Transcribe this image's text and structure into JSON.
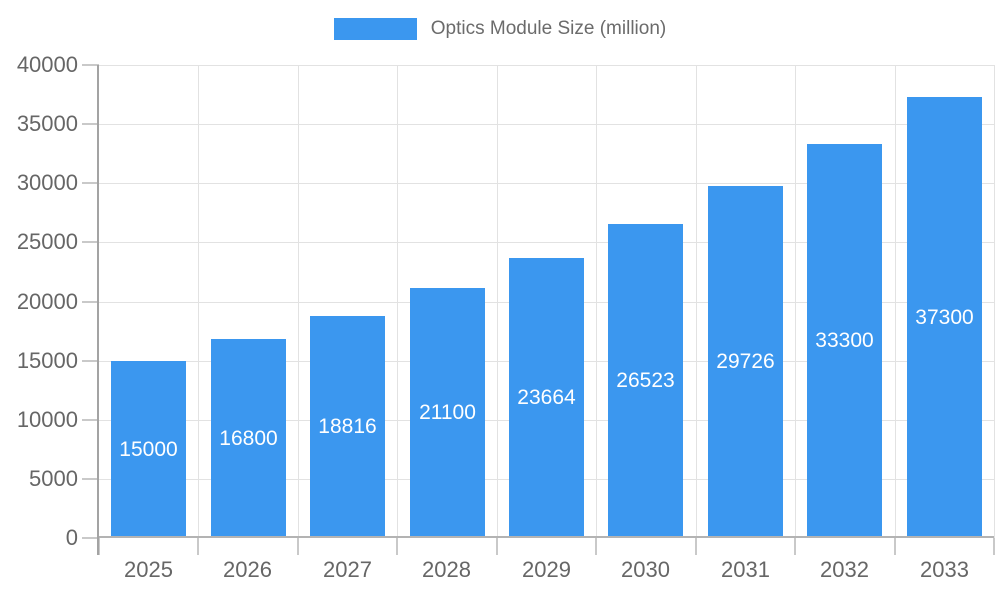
{
  "chart_data": {
    "type": "bar",
    "title": "",
    "legend_position": "top-center",
    "value_labels": "inside-center",
    "grid": true,
    "categories": [
      "2025",
      "2026",
      "2027",
      "2028",
      "2029",
      "2030",
      "2031",
      "2032",
      "2033"
    ],
    "series": [
      {
        "name": "Optics Module Size (million)",
        "values": [
          15000,
          16800,
          18816,
          21100,
          23664,
          26523,
          29726,
          33300,
          37300
        ]
      }
    ],
    "xlabel": "",
    "ylabel": "",
    "ylim": [
      0,
      40000
    ],
    "yticks": [
      0,
      5000,
      10000,
      15000,
      20000,
      25000,
      30000,
      35000,
      40000
    ],
    "colors": {
      "bar": "#3B97EF",
      "value_label": "#FFFFFF",
      "axis_text": "#666666",
      "legend_text": "#6B6B6B",
      "grid_line": "#E2E2E2",
      "axis_line": "#A3A3A3",
      "tick": "#C9C9C9",
      "background": "#FFFFFF"
    }
  }
}
